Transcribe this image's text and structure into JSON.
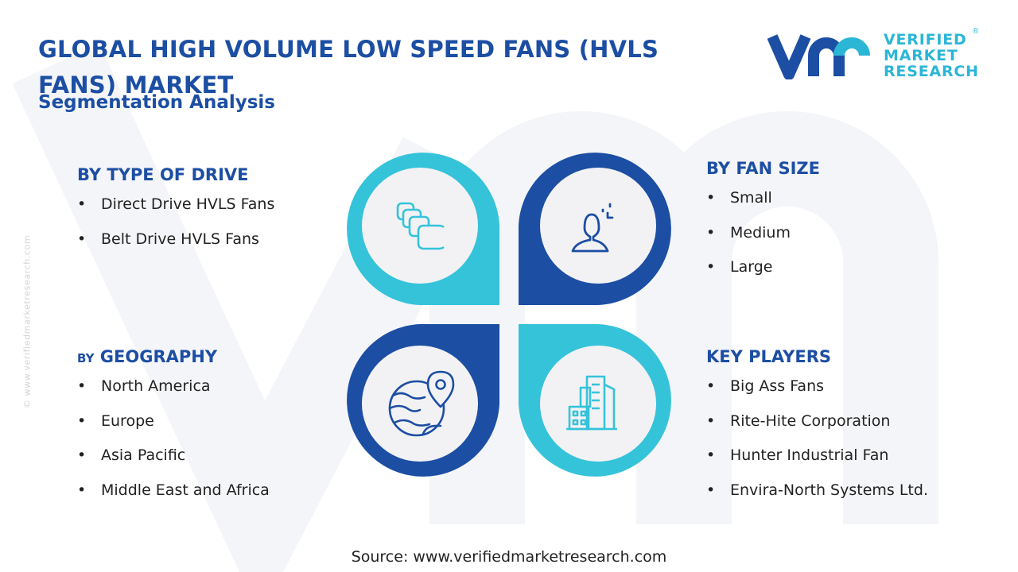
{
  "header": {
    "title": "GLOBAL HIGH VOLUME LOW SPEED FANS (HVLS FANS) MARKET",
    "subtitle": "Segmentation Analysis"
  },
  "logo": {
    "line1": "VERIFIED",
    "line2": "MARKET",
    "line3": "RESEARCH",
    "registered": "®"
  },
  "side_url": "© www.verifiedmarketresearch.com",
  "segments": {
    "drive": {
      "heading": "BY TYPE OF DRIVE",
      "items": [
        "Direct Drive HVLS Fans",
        "Belt Drive HVLS Fans"
      ],
      "icon": "stacked-cards-icon"
    },
    "fan_size": {
      "heading": "BY FAN SIZE",
      "items": [
        "Small",
        "Medium",
        "Large"
      ],
      "icon": "user-scan-icon"
    },
    "geography": {
      "heading_prefix": "BY",
      "heading": "GEOGRAPHY",
      "items": [
        "North America",
        "Europe",
        "Asia Pacific",
        "Middle East and Africa"
      ],
      "icon": "globe-pin-icon"
    },
    "key_players": {
      "heading": "KEY PLAYERS",
      "items": [
        "Big Ass Fans",
        "Rite-Hite Corporation",
        "Hunter Industrial Fan",
        "Envira-North Systems Ltd."
      ],
      "icon": "buildings-icon"
    }
  },
  "source": "Source: www.verifiedmarketresearch.com",
  "colors": {
    "navy": "#1c4ea3",
    "cyan": "#2bb6d6",
    "cyan_light": "#35c3da",
    "circle_fill": "#f2f2f4"
  }
}
